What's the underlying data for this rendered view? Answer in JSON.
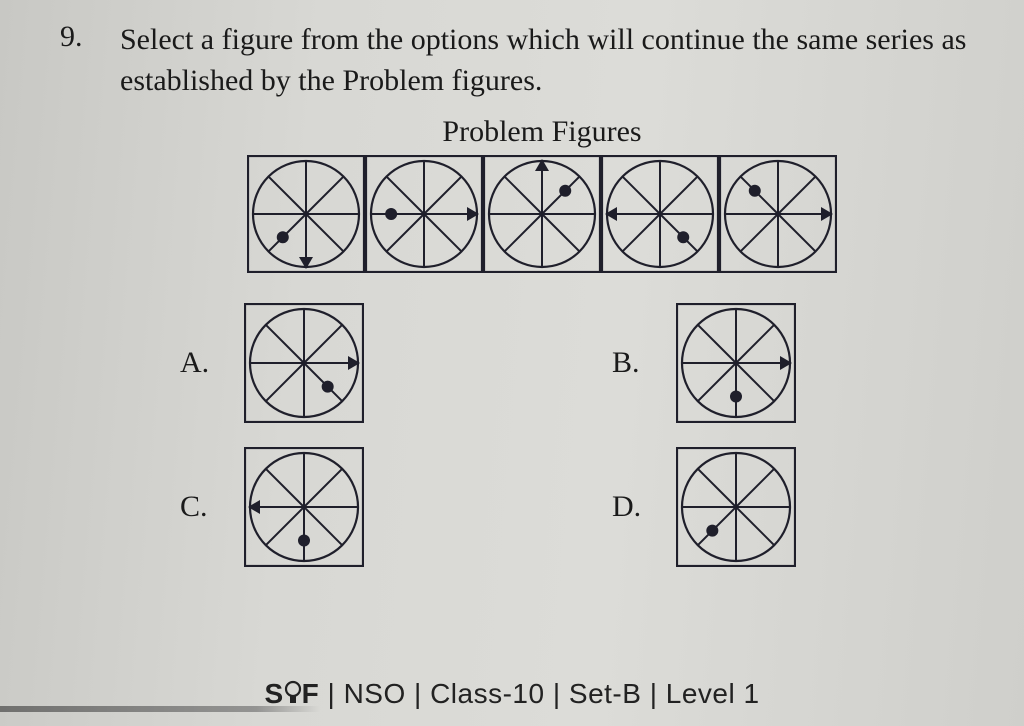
{
  "question": {
    "number": "9.",
    "text": "Select a figure from the options which will continue the same series as established by the Problem figures.",
    "pf_title": "Problem Figures"
  },
  "style": {
    "stroke": "#1f1f2b",
    "bg": "#e3e3df",
    "box_border_w": 2.2,
    "circle_stroke_w": 2.2,
    "spoke_stroke_w": 2,
    "dot_r": 6
  },
  "problem_figures": [
    {
      "size": 118,
      "arrow_dir": "S",
      "dot_dir": "SW"
    },
    {
      "size": 118,
      "arrow_dir": "E",
      "dot_dir": "W"
    },
    {
      "size": 118,
      "arrow_dir": "N",
      "dot_dir": "NE"
    },
    {
      "size": 118,
      "arrow_dir": "W",
      "dot_dir": "SE"
    },
    {
      "size": 118,
      "arrow_dir": "E",
      "dot_dir": "NW"
    }
  ],
  "options": [
    {
      "label": "A.",
      "size": 120,
      "arrow_dir": "E",
      "dot_dir": "SE"
    },
    {
      "label": "B.",
      "size": 120,
      "arrow_dir": "E",
      "dot_dir": "S"
    },
    {
      "label": "C.",
      "size": 120,
      "arrow_dir": "W",
      "dot_dir": "S"
    },
    {
      "label": "D.",
      "size": 120,
      "arrow_dir": null,
      "dot_dir": "SW"
    }
  ],
  "footer": {
    "sof": "S",
    "sof_rest": "F",
    "rest": " | NSO | Class-10 | Set-B | Level 1"
  }
}
